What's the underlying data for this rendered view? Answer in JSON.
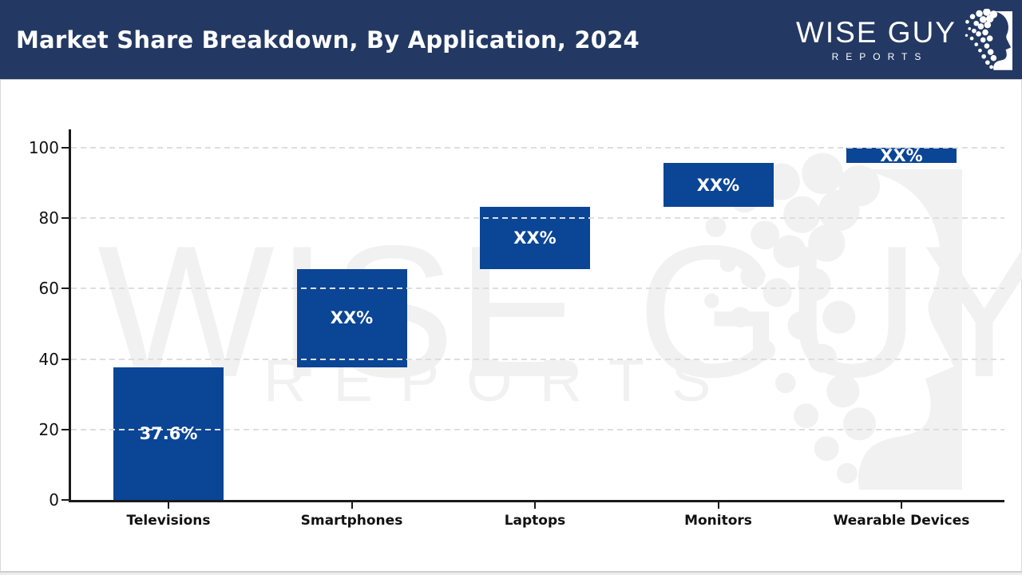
{
  "header": {
    "title": "Market Share Breakdown, By Application, 2024",
    "logo": {
      "name": "WISE GUY",
      "sub": "REPORTS"
    }
  },
  "watermark": {
    "line1": "WISE GUY",
    "line2": "REPORTS"
  },
  "chart_data": {
    "type": "bar",
    "subtype": "waterfall",
    "title": "Market Share Breakdown, By Application, 2024",
    "categories": [
      "Televisions",
      "Smartphones",
      "Laptops",
      "Monitors",
      "Wearable Devices"
    ],
    "segments": [
      {
        "category": "Televisions",
        "start": 0,
        "end": 37.6,
        "label": "37.6%"
      },
      {
        "category": "Smartphones",
        "start": 37.6,
        "end": 65.6,
        "label": "XX%"
      },
      {
        "category": "Laptops",
        "start": 65.6,
        "end": 83.1,
        "label": "XX%"
      },
      {
        "category": "Monitors",
        "start": 83.1,
        "end": 95.6,
        "label": "XX%"
      },
      {
        "category": "Wearable Devices",
        "start": 95.6,
        "end": 100,
        "label": "XX%"
      }
    ],
    "yticks": [
      0,
      20,
      40,
      60,
      80,
      100
    ],
    "ylim": [
      0,
      105
    ],
    "grid": "horizontal-dashed",
    "legend": "none",
    "bar_color": "#0b4596",
    "label_color": "#ffffff",
    "header_color": "#233963"
  }
}
